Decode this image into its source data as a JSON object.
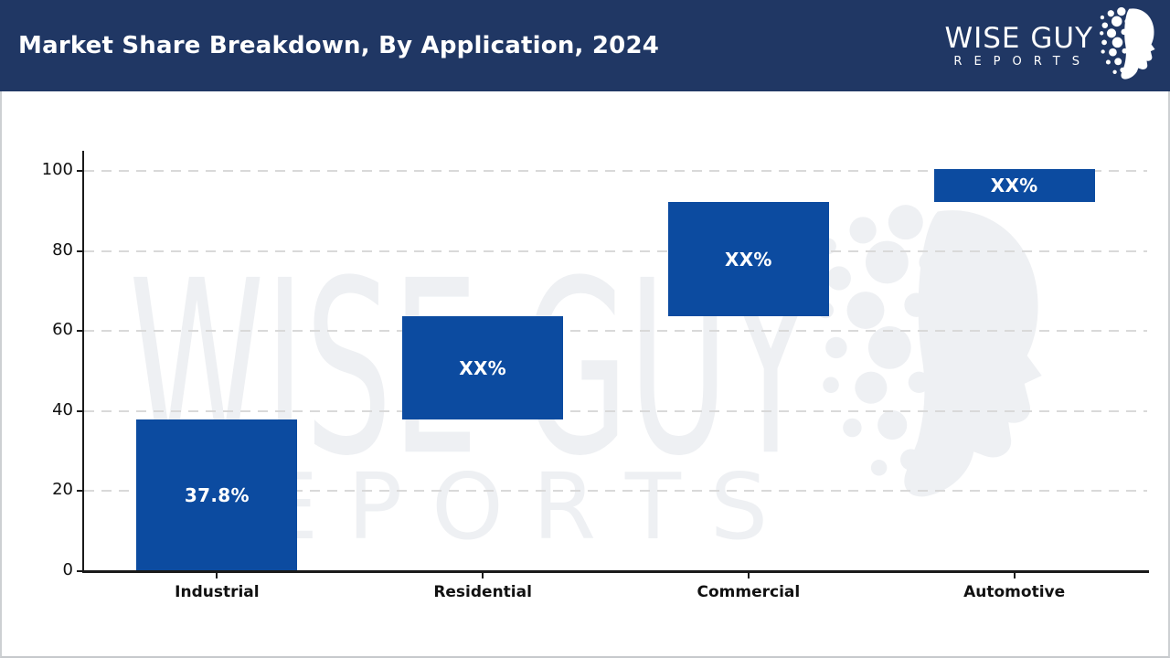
{
  "header": {
    "title": "Market Share Breakdown, By Application, 2024",
    "logo": {
      "line1": "WISE GUY",
      "line2": "REPORTS"
    }
  },
  "watermark": {
    "line1": "WISE GUY",
    "line2": "R E P O R T S"
  },
  "colors": {
    "header_bg": "#203764",
    "bar": "#0c4ba0",
    "watermark": "#eef0f3",
    "gridline": "#d9d9d9",
    "axis": "#1a1a1a"
  },
  "chart_data": {
    "type": "bar",
    "subtype": "waterfall",
    "title": "Market Share Breakdown, By Application, 2024",
    "categories": [
      "Industrial",
      "Residential",
      "Commercial",
      "Automotive"
    ],
    "segments": [
      {
        "category": "Industrial",
        "start": 0,
        "end": 37.8,
        "value": 37.8,
        "label": "37.8%"
      },
      {
        "category": "Residential",
        "start": 37.8,
        "end": 63.7,
        "value": 25.9,
        "label": "XX%"
      },
      {
        "category": "Commercial",
        "start": 63.7,
        "end": 92.2,
        "value": 28.5,
        "label": "XX%"
      },
      {
        "category": "Automotive",
        "start": 92.2,
        "end": 100.5,
        "value": 8.3,
        "label": "XX%"
      }
    ],
    "xlabel": "",
    "ylabel": "",
    "ylim": [
      0,
      105
    ],
    "y_ticks": [
      0,
      20,
      40,
      60,
      80,
      100
    ],
    "grid": true,
    "grid_style": "dashed horizontal",
    "legend": "none",
    "bar_color": "#0c4ba0",
    "bar_label_color": "#ffffff"
  }
}
